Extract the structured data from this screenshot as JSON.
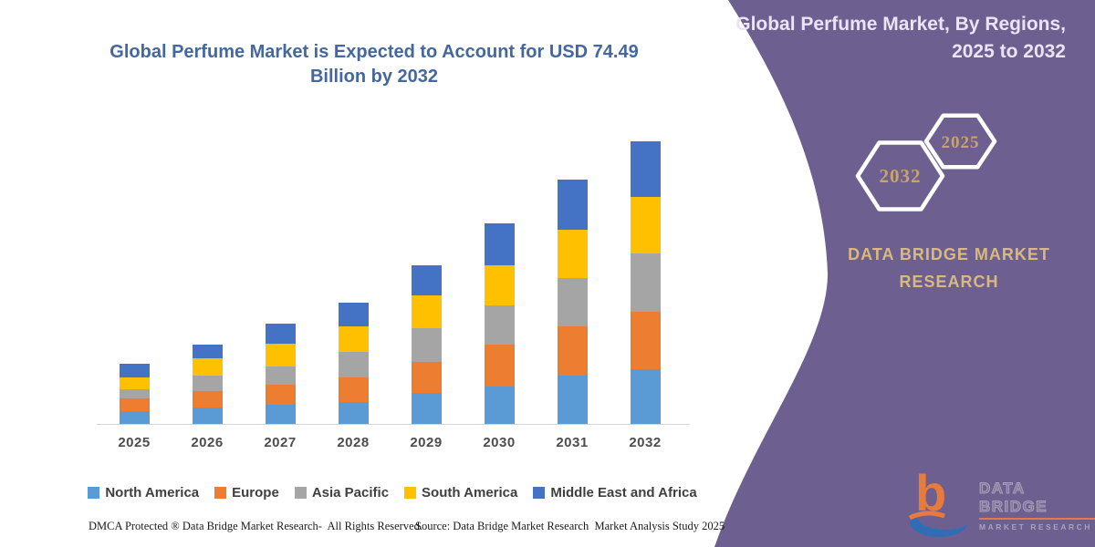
{
  "colors": {
    "panel_purple": "#6D5F8F",
    "chart_title_blue": "#44679E",
    "hexagon_year_gold": "#C9A467",
    "brand_heading_gold": "#D8B97E",
    "panel_title_lavender": "#EAE4F5",
    "axis_line_gray": "#D6D6D6",
    "axis_label_gray": "#4D4D4D",
    "legend_text_gray": "#3F3F3F",
    "footer_text": "#1A1A1A",
    "logo_orange": "#E87A3C",
    "logo_blue": "#2F6DB5",
    "logo_text_gray": "#A9A2B8"
  },
  "chart": {
    "title": "Global Perfume Market is Expected to Account for USD 74.49 Billion by 2032"
  },
  "chart_data": {
    "type": "bar",
    "stacked": true,
    "unit": "USD Billion",
    "title": "Global Perfume Market is Expected to Account for USD 74.49 Billion by 2032",
    "categories": [
      "2025",
      "2026",
      "2027",
      "2028",
      "2029",
      "2030",
      "2031",
      "2032"
    ],
    "series": [
      {
        "name": "North America",
        "color": "#5B9BD5",
        "values": [
          3.6,
          4.6,
          5.3,
          6.0,
          8.4,
          10.1,
          12.9,
          14.6
        ]
      },
      {
        "name": "Europe",
        "color": "#ED7D31",
        "values": [
          3.4,
          4.3,
          5.3,
          6.5,
          8.1,
          11.0,
          12.9,
          15.1
        ]
      },
      {
        "name": "Asia Pacific",
        "color": "#A5A5A5",
        "values": [
          2.4,
          4.1,
          4.8,
          6.7,
          8.9,
          10.3,
          12.7,
          15.3
        ]
      },
      {
        "name": "South America",
        "color": "#FFC000",
        "values": [
          3.1,
          4.6,
          6.0,
          6.7,
          8.6,
          10.5,
          12.7,
          14.9
        ]
      },
      {
        "name": "Middle East and Africa",
        "color": "#4472C4",
        "values": [
          3.6,
          3.6,
          5.3,
          6.2,
          7.9,
          11.0,
          13.2,
          14.6
        ]
      }
    ],
    "totals": [
      16.1,
      21.2,
      26.7,
      32.1,
      41.9,
      52.9,
      64.4,
      74.5
    ],
    "ylim": [
      0,
      80
    ],
    "gridlines": false,
    "y_axis_visible": false,
    "legend_position": "bottom"
  },
  "side_panel": {
    "title_line1": "Global Perfume Market, By Regions,",
    "title_line2": "2025 to 2032",
    "hexagon_back": {
      "label": "2032"
    },
    "hexagon_front": {
      "label": "2025"
    },
    "brand_heading": "DATA BRIDGE MARKET RESEARCH",
    "logo": {
      "title": "DATA BRIDGE",
      "subtitle": "MARKET RESEARCH"
    }
  },
  "footer": {
    "left_text": "DMCA Protected ® Data Bridge Market Research-  All Rights Reserved.",
    "source_text": "Source: Data Bridge Market Research  Market Analysis Study 2025"
  }
}
